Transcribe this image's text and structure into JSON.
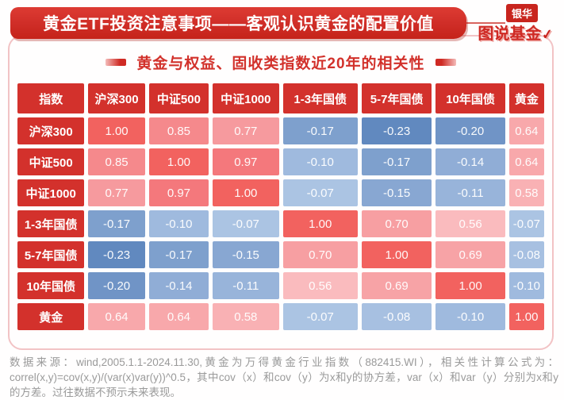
{
  "header": {
    "title": "黄金ETF投资注意事项——客观认识黄金的配置价值",
    "brand_top": "银华",
    "brand_bottom": "图说基金",
    "checkmark": "✓"
  },
  "chart_data": {
    "type": "heatmap",
    "title": "黄金与权益、固收类指数近20年的相关性",
    "corner_label": "指数",
    "columns": [
      "沪深300",
      "中证500",
      "中证1000",
      "1-3年国债",
      "5-7年国债",
      "10年国债",
      "黄金"
    ],
    "rows": [
      "沪深300",
      "中证500",
      "中证1000",
      "1-3年国债",
      "5-7年国债",
      "10年国债",
      "黄金"
    ],
    "values": [
      [
        1.0,
        0.85,
        0.77,
        -0.17,
        -0.23,
        -0.2,
        0.64
      ],
      [
        0.85,
        1.0,
        0.97,
        -0.1,
        -0.17,
        -0.14,
        0.64
      ],
      [
        0.77,
        0.97,
        1.0,
        -0.07,
        -0.15,
        -0.11,
        0.58
      ],
      [
        -0.17,
        -0.1,
        -0.07,
        1.0,
        0.7,
        0.56,
        -0.07
      ],
      [
        -0.23,
        -0.17,
        -0.15,
        0.7,
        1.0,
        0.69,
        -0.08
      ],
      [
        -0.2,
        -0.14,
        -0.11,
        0.56,
        0.69,
        1.0,
        -0.1
      ],
      [
        0.64,
        0.64,
        0.58,
        -0.07,
        -0.08,
        -0.1,
        1.0
      ]
    ],
    "value_range": [
      -1,
      1
    ],
    "legend": "none",
    "grid": false,
    "colors": {
      "header_bg": "#d3312c",
      "header_text": "#ffffff",
      "colormap": {
        "1.00": "#f2625f",
        "0.97": "#f4787c",
        "0.85": "#f5898c",
        "0.77": "#f69a9e",
        "0.70": "#f79fa2",
        "0.69": "#f7a3a6",
        "0.64": "#f8a8ab",
        "0.58": "#f9b1b4",
        "0.56": "#fabbbe",
        "-0.07": "#abc4e3",
        "-0.08": "#a7c0e1",
        "-0.10": "#9fbade",
        "-0.11": "#98b4da",
        "-0.14": "#90add6",
        "-0.15": "#88a7d2",
        "-0.17": "#7ea0cd",
        "-0.20": "#7094c6",
        "-0.23": "#6189bf"
      }
    }
  },
  "footer": {
    "note": "数据来源：wind,2005.1.1-2024.11.30,黄金为万得黄金行业指数（882415.WI），相关性计算公式为：correl(x,y)=cov(x,y)/(var(x)var(y))^0.5，其中cov（x）和cov（y）为x和y的协方差，var（x）和var（y）分别为x和y的方差。过往数据不预示未来表现。"
  },
  "theme": {
    "banner_red": "#d2312b",
    "accent_red": "#d2312b",
    "card_border": "#f2c3c5",
    "footnote_gray": "#9a9a9a"
  }
}
